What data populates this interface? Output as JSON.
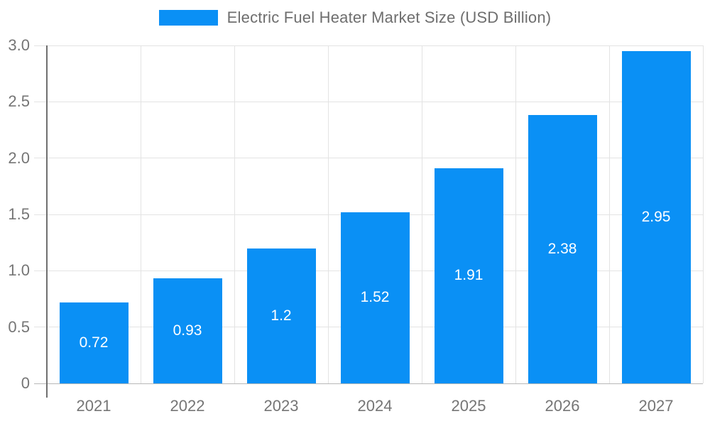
{
  "chart_data": {
    "type": "bar",
    "title": "Electric Fuel Heater Market Size (USD Billion)",
    "legend": {
      "position": "top",
      "label": "Electric Fuel Heater Market Size (USD Billion)"
    },
    "categories": [
      "2021",
      "2022",
      "2023",
      "2024",
      "2025",
      "2026",
      "2027"
    ],
    "values": [
      0.72,
      0.93,
      1.2,
      1.52,
      1.91,
      2.38,
      2.95
    ],
    "value_labels": [
      "0.72",
      "0.93",
      "1.2",
      "1.52",
      "1.91",
      "2.38",
      "2.95"
    ],
    "xlabel": "",
    "ylabel": "",
    "ylim": [
      0,
      3
    ],
    "yticks": [
      0,
      0.5,
      1,
      1.5,
      2,
      2.5,
      3
    ],
    "ytick_labels": [
      "0",
      "0.5",
      "1.0",
      "1.5",
      "2.0",
      "2.5",
      "3.0"
    ],
    "grid": true,
    "colors": {
      "bar": "#0a90f5",
      "grid": "#e3e3e3",
      "baseline": "#b8b8b8",
      "axis": "#6f6f6f",
      "tick_text": "#757575",
      "legend_text": "#6e6e6e",
      "value_text": "#ffffff",
      "background": "#ffffff"
    }
  }
}
